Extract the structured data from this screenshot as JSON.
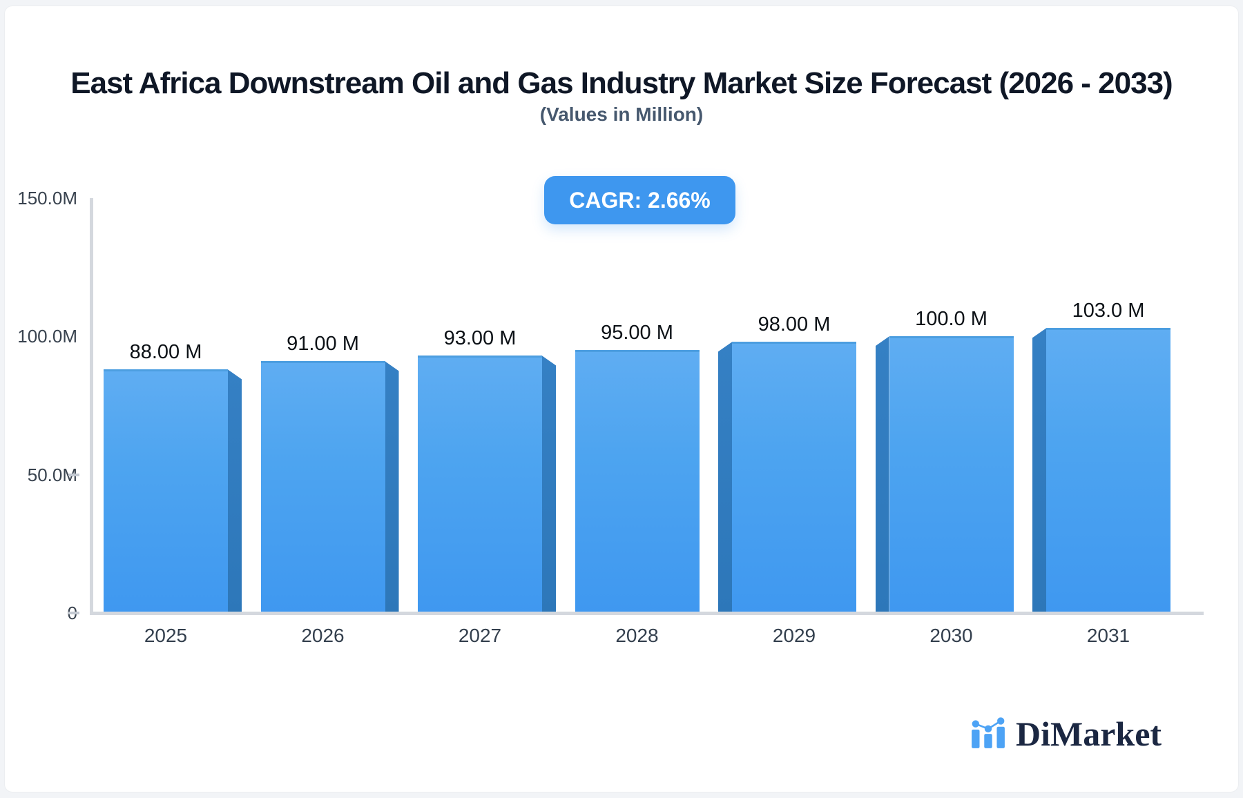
{
  "title": "East Africa Downstream Oil and Gas Industry Market Size Forecast (2026 - 2033)",
  "subtitle": "(Values in Million)",
  "badge": {
    "label": "CAGR: 2.66%",
    "color": "#3e97ef"
  },
  "logo": {
    "text": "DiMarket",
    "icon": "bar-chart-sparkline-icon",
    "icon_color": "#4da3f5",
    "text_color": "#1b2742"
  },
  "chart_data": {
    "type": "bar",
    "categories": [
      "2025",
      "2026",
      "2027",
      "2028",
      "2029",
      "2030",
      "2031"
    ],
    "values": [
      88,
      91,
      93,
      95,
      98,
      100,
      103
    ],
    "value_labels": [
      "88.00 M",
      "91.00 M",
      "93.00 M",
      "95.00 M",
      "98.00 M",
      "100.0 M",
      "103.0 M"
    ],
    "unit": "Million",
    "title": "East Africa Downstream Oil and Gas Industry Market Size Forecast (2026 - 2033)",
    "xlabel": "",
    "ylabel": "",
    "ylim": [
      0,
      150
    ],
    "ytick_labels": [
      "150.0M",
      "100.0M",
      "50.0M",
      "0"
    ],
    "ytick_values": [
      150,
      100,
      50,
      0
    ],
    "ticks_with_dash": [
      50,
      0
    ],
    "grid": false,
    "legend": false,
    "style": "3d-bars, value labels above bars, blue gradient",
    "bar_color_top": "#5fadf2",
    "bar_color_bottom": "#3f98f0",
    "bar_side_color": "#2d77b9",
    "axis_color": "#d4d8de"
  }
}
